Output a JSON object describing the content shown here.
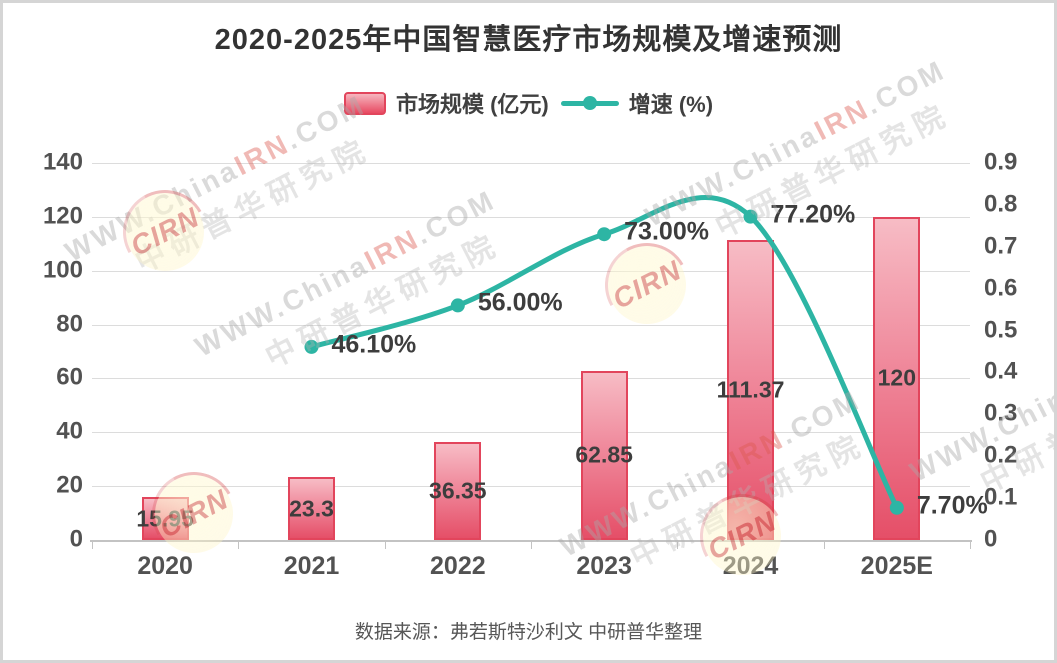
{
  "title": "2020-2025年中国智慧医疗市场规模及增速预测",
  "legend": {
    "items": [
      {
        "label": "市场规模 (亿元)",
        "marker": "bar-swatch"
      },
      {
        "label": "增速 (%)",
        "marker": "line-swatch"
      }
    ]
  },
  "source": "数据来源：弗若斯特沙利文 中研普华整理",
  "watermark": {
    "url_prefix": "WWW.China",
    "url_red": "IRN",
    "url_suffix": ".COM",
    "org_text": "中研普华研究院",
    "logo_text": "CIRN"
  },
  "colors": {
    "bar_fill_top": "#f7bcc5",
    "bar_fill_bottom": "#e54f68",
    "bar_border": "#e2455c",
    "line": "#2db5a4",
    "grid": "#dcdcdc",
    "axis_text": "#525252",
    "label_text": "#3d3d3d",
    "title_text": "#333333",
    "frame_border": "#d5d5d5"
  },
  "chart_data": {
    "type": "combo (bar + line)",
    "title": "2020-2025年中国智慧医疗市场规模及增速预测",
    "categories": [
      "2020",
      "2021",
      "2022",
      "2023",
      "2024",
      "2025E"
    ],
    "series": [
      {
        "name": "市场规模 (亿元)",
        "chart": "bar",
        "axis": "left",
        "values": [
          15.95,
          23.3,
          36.35,
          62.85,
          111.37,
          120
        ],
        "labels": [
          "15.95",
          "23.3",
          "36.35",
          "62.85",
          "111.37",
          "120"
        ]
      },
      {
        "name": "增速 (%)",
        "chart": "line",
        "axis": "right",
        "values": [
          null,
          0.461,
          0.56,
          0.73,
          0.772,
          0.077
        ],
        "labels": [
          "",
          "46.10%",
          "56.00%",
          "73.00%",
          "77.20%",
          "7.70%"
        ]
      }
    ],
    "axes": {
      "left": {
        "min": 0,
        "max": 140,
        "step": 20,
        "tick_labels": [
          "0",
          "20",
          "40",
          "60",
          "80",
          "100",
          "120",
          "140"
        ]
      },
      "right": {
        "min": 0,
        "max": 0.9,
        "step": 0.1,
        "tick_labels": [
          "0",
          "0.1",
          "0.2",
          "0.3",
          "0.4",
          "0.5",
          "0.6",
          "0.7",
          "0.8",
          "0.9"
        ]
      }
    },
    "grid": true,
    "legend_position": "top",
    "source_note": "数据来源：弗若斯特沙利文 中研普华整理"
  }
}
